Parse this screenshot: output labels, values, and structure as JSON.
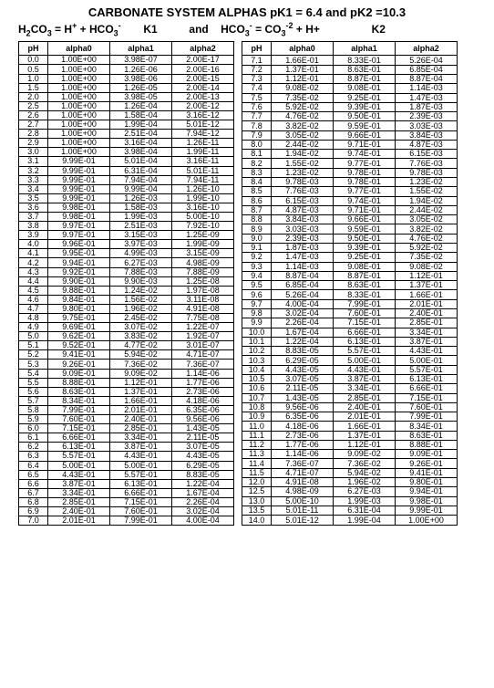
{
  "title": "CARBONATE SYSTEM ALPHAS  pK1 = 6.4 and pK2 =10.3",
  "headers": {
    "ph": "pH",
    "a0": "alpha0",
    "a1": "alpha1",
    "a2": "alpha2"
  },
  "equation": {
    "lhs_prefix": "H",
    "lhs_sub1": "2",
    "lhs_mid": "CO",
    "lhs_sub2": "3",
    "eq": " = H",
    "h_sup": "+",
    "plus": " + HCO",
    "hco_sub": "3",
    "hco_sup": "-",
    "k1": "K1",
    "and": "and",
    "rhs_pre": "HCO",
    "rhs_sub": "3",
    "rhs_sup": "-",
    "eq2": " = CO",
    "co_sub": "3",
    "co_sup": "-2",
    "plus_h": " + H+",
    "k2": "K2"
  },
  "tableA": {
    "rows": [
      {
        "ph": "0.0",
        "a0": "1.00E+00",
        "a1": "3.98E-07",
        "a2": "2.00E-17"
      },
      {
        "ph": "0.5",
        "a0": "1.00E+00",
        "a1": "1.26E-06",
        "a2": "2.00E-16"
      },
      {
        "ph": "1.0",
        "a0": "1.00E+00",
        "a1": "3.98E-06",
        "a2": "2.00E-15"
      },
      {
        "ph": "1.5",
        "a0": "1.00E+00",
        "a1": "1.26E-05",
        "a2": "2.00E-14"
      },
      {
        "ph": "2.0",
        "a0": "1.00E+00",
        "a1": "3.98E-05",
        "a2": "2.00E-13"
      },
      {
        "ph": "2.5",
        "a0": "1.00E+00",
        "a1": "1.26E-04",
        "a2": "2.00E-12"
      },
      {
        "ph": "2.6",
        "a0": "1.00E+00",
        "a1": "1.58E-04",
        "a2": "3.16E-12"
      },
      {
        "ph": "2.7",
        "a0": "1.00E+00",
        "a1": "1.99E-04",
        "a2": "5.01E-12"
      },
      {
        "ph": "2.8",
        "a0": "1.00E+00",
        "a1": "2.51E-04",
        "a2": "7.94E-12"
      },
      {
        "ph": "2.9",
        "a0": "1.00E+00",
        "a1": "3.16E-04",
        "a2": "1.26E-11"
      },
      {
        "ph": "3.0",
        "a0": "1.00E+00",
        "a1": "3.98E-04",
        "a2": "1.99E-11"
      },
      {
        "ph": "3.1",
        "a0": "9.99E-01",
        "a1": "5.01E-04",
        "a2": "3.16E-11"
      },
      {
        "ph": "3.2",
        "a0": "9.99E-01",
        "a1": "6.31E-04",
        "a2": "5.01E-11"
      },
      {
        "ph": "3.3",
        "a0": "9.99E-01",
        "a1": "7.94E-04",
        "a2": "7.94E-11"
      },
      {
        "ph": "3.4",
        "a0": "9.99E-01",
        "a1": "9.99E-04",
        "a2": "1.26E-10"
      },
      {
        "ph": "3.5",
        "a0": "9.99E-01",
        "a1": "1.26E-03",
        "a2": "1.99E-10"
      },
      {
        "ph": "3.6",
        "a0": "9.98E-01",
        "a1": "1.58E-03",
        "a2": "3.16E-10"
      },
      {
        "ph": "3.7",
        "a0": "9.98E-01",
        "a1": "1.99E-03",
        "a2": "5.00E-10"
      },
      {
        "ph": "3.8",
        "a0": "9.97E-01",
        "a1": "2.51E-03",
        "a2": "7.92E-10"
      },
      {
        "ph": "3.9",
        "a0": "9.97E-01",
        "a1": "3.15E-03",
        "a2": "1.25E-09"
      },
      {
        "ph": "4.0",
        "a0": "9.96E-01",
        "a1": "3.97E-03",
        "a2": "1.99E-09"
      },
      {
        "ph": "4.1",
        "a0": "9.95E-01",
        "a1": "4.99E-03",
        "a2": "3.15E-09"
      },
      {
        "ph": "4.2",
        "a0": "9.94E-01",
        "a1": "6.27E-03",
        "a2": "4.98E-09"
      },
      {
        "ph": "4.3",
        "a0": "9.92E-01",
        "a1": "7.88E-03",
        "a2": "7.88E-09"
      },
      {
        "ph": "4.4",
        "a0": "9.90E-01",
        "a1": "9.90E-03",
        "a2": "1.25E-08"
      },
      {
        "ph": "4.5",
        "a0": "9.88E-01",
        "a1": "1.24E-02",
        "a2": "1.97E-08"
      },
      {
        "ph": "4.6",
        "a0": "9.84E-01",
        "a1": "1.56E-02",
        "a2": "3.11E-08"
      },
      {
        "ph": "4.7",
        "a0": "9.80E-01",
        "a1": "1.96E-02",
        "a2": "4.91E-08"
      },
      {
        "ph": "4.8",
        "a0": "9.75E-01",
        "a1": "2.45E-02",
        "a2": "7.75E-08"
      },
      {
        "ph": "4.9",
        "a0": "9.69E-01",
        "a1": "3.07E-02",
        "a2": "1.22E-07"
      },
      {
        "ph": "5.0",
        "a0": "9.62E-01",
        "a1": "3.83E-02",
        "a2": "1.92E-07"
      },
      {
        "ph": "5.1",
        "a0": "9.52E-01",
        "a1": "4.77E-02",
        "a2": "3.01E-07"
      },
      {
        "ph": "5.2",
        "a0": "9.41E-01",
        "a1": "5.94E-02",
        "a2": "4.71E-07"
      },
      {
        "ph": "5.3",
        "a0": "9.26E-01",
        "a1": "7.36E-02",
        "a2": "7.36E-07"
      },
      {
        "ph": "5.4",
        "a0": "9.09E-01",
        "a1": "9.09E-02",
        "a2": "1.14E-06"
      },
      {
        "ph": "5.5",
        "a0": "8.88E-01",
        "a1": "1.12E-01",
        "a2": "1.77E-06"
      },
      {
        "ph": "5.6",
        "a0": "8.63E-01",
        "a1": "1.37E-01",
        "a2": "2.73E-06"
      },
      {
        "ph": "5.7",
        "a0": "8.34E-01",
        "a1": "1.66E-01",
        "a2": "4.18E-06"
      },
      {
        "ph": "5.8",
        "a0": "7.99E-01",
        "a1": "2.01E-01",
        "a2": "6.35E-06"
      },
      {
        "ph": "5.9",
        "a0": "7.60E-01",
        "a1": "2.40E-01",
        "a2": "9.56E-06"
      },
      {
        "ph": "6.0",
        "a0": "7.15E-01",
        "a1": "2.85E-01",
        "a2": "1.43E-05"
      },
      {
        "ph": "6.1",
        "a0": "6.66E-01",
        "a1": "3.34E-01",
        "a2": "2.11E-05"
      },
      {
        "ph": "6.2",
        "a0": "6.13E-01",
        "a1": "3.87E-01",
        "a2": "3.07E-05"
      },
      {
        "ph": "6.3",
        "a0": "5.57E-01",
        "a1": "4.43E-01",
        "a2": "4.43E-05"
      },
      {
        "ph": "6.4",
        "a0": "5.00E-01",
        "a1": "5.00E-01",
        "a2": "6.29E-05"
      },
      {
        "ph": "6.5",
        "a0": "4.43E-01",
        "a1": "5.57E-01",
        "a2": "8.83E-05"
      },
      {
        "ph": "6.6",
        "a0": "3.87E-01",
        "a1": "6.13E-01",
        "a2": "1.22E-04"
      },
      {
        "ph": "6.7",
        "a0": "3.34E-01",
        "a1": "6.66E-01",
        "a2": "1.67E-04"
      },
      {
        "ph": "6.8",
        "a0": "2.85E-01",
        "a1": "7.15E-01",
        "a2": "2.26E-04"
      },
      {
        "ph": "6.9",
        "a0": "2.40E-01",
        "a1": "7.60E-01",
        "a2": "3.02E-04"
      },
      {
        "ph": "7.0",
        "a0": "2.01E-01",
        "a1": "7.99E-01",
        "a2": "4.00E-04"
      }
    ]
  },
  "tableB": {
    "rows": [
      {
        "ph": "7.1",
        "a0": "1.66E-01",
        "a1": "8.33E-01",
        "a2": "5.26E-04"
      },
      {
        "ph": "7.2",
        "a0": "1.37E-01",
        "a1": "8.63E-01",
        "a2": "6.85E-04"
      },
      {
        "ph": "7.3",
        "a0": "1.12E-01",
        "a1": "8.87E-01",
        "a2": "8.87E-04"
      },
      {
        "ph": "7.4",
        "a0": "9.08E-02",
        "a1": "9.08E-01",
        "a2": "1.14E-03"
      },
      {
        "ph": "7.5",
        "a0": "7.35E-02",
        "a1": "9.25E-01",
        "a2": "1.47E-03"
      },
      {
        "ph": "7.6",
        "a0": "5.92E-02",
        "a1": "9.39E-01",
        "a2": "1.87E-03"
      },
      {
        "ph": "7.7",
        "a0": "4.76E-02",
        "a1": "9.50E-01",
        "a2": "2.39E-03"
      },
      {
        "ph": "7.8",
        "a0": "3.82E-02",
        "a1": "9.59E-01",
        "a2": "3.03E-03"
      },
      {
        "ph": "7.9",
        "a0": "3.05E-02",
        "a1": "9.66E-01",
        "a2": "3.84E-03"
      },
      {
        "ph": "8.0",
        "a0": "2.44E-02",
        "a1": "9.71E-01",
        "a2": "4.87E-03"
      },
      {
        "ph": "8.1",
        "a0": "1.94E-02",
        "a1": "9.74E-01",
        "a2": "6.15E-03"
      },
      {
        "ph": "8.2",
        "a0": "1.55E-02",
        "a1": "9.77E-01",
        "a2": "7.76E-03"
      },
      {
        "ph": "8.3",
        "a0": "1.23E-02",
        "a1": "9.78E-01",
        "a2": "9.78E-03"
      },
      {
        "ph": "8.4",
        "a0": "9.78E-03",
        "a1": "9.78E-01",
        "a2": "1.23E-02"
      },
      {
        "ph": "8.5",
        "a0": "7.76E-03",
        "a1": "9.77E-01",
        "a2": "1.55E-02"
      },
      {
        "ph": "8.6",
        "a0": "6.15E-03",
        "a1": "9.74E-01",
        "a2": "1.94E-02"
      },
      {
        "ph": "8.7",
        "a0": "4.87E-03",
        "a1": "9.71E-01",
        "a2": "2.44E-02"
      },
      {
        "ph": "8.8",
        "a0": "3.84E-03",
        "a1": "9.66E-01",
        "a2": "3.05E-02"
      },
      {
        "ph": "8.9",
        "a0": "3.03E-03",
        "a1": "9.59E-01",
        "a2": "3.82E-02"
      },
      {
        "ph": "9.0",
        "a0": "2.39E-03",
        "a1": "9.50E-01",
        "a2": "4.76E-02"
      },
      {
        "ph": "9.1",
        "a0": "1.87E-03",
        "a1": "9.39E-01",
        "a2": "5.92E-02"
      },
      {
        "ph": "9.2",
        "a0": "1.47E-03",
        "a1": "9.25E-01",
        "a2": "7.35E-02"
      },
      {
        "ph": "9.3",
        "a0": "1.14E-03",
        "a1": "9.08E-01",
        "a2": "9.08E-02"
      },
      {
        "ph": "9.4",
        "a0": "8.87E-04",
        "a1": "8.87E-01",
        "a2": "1.12E-01"
      },
      {
        "ph": "9.5",
        "a0": "6.85E-04",
        "a1": "8.63E-01",
        "a2": "1.37E-01"
      },
      {
        "ph": "9.6",
        "a0": "5.26E-04",
        "a1": "8.33E-01",
        "a2": "1.66E-01"
      },
      {
        "ph": "9.7",
        "a0": "4.00E-04",
        "a1": "7.99E-01",
        "a2": "2.01E-01"
      },
      {
        "ph": "9.8",
        "a0": "3.02E-04",
        "a1": "7.60E-01",
        "a2": "2.40E-01"
      },
      {
        "ph": "9.9",
        "a0": "2.26E-04",
        "a1": "7.15E-01",
        "a2": "2.85E-01"
      },
      {
        "ph": "10.0",
        "a0": "1.67E-04",
        "a1": "6.66E-01",
        "a2": "3.34E-01"
      },
      {
        "ph": "10.1",
        "a0": "1.22E-04",
        "a1": "6.13E-01",
        "a2": "3.87E-01"
      },
      {
        "ph": "10.2",
        "a0": "8.83E-05",
        "a1": "5.57E-01",
        "a2": "4.43E-01"
      },
      {
        "ph": "10.3",
        "a0": "6.29E-05",
        "a1": "5.00E-01",
        "a2": "5.00E-01"
      },
      {
        "ph": "10.4",
        "a0": "4.43E-05",
        "a1": "4.43E-01",
        "a2": "5.57E-01"
      },
      {
        "ph": "10.5",
        "a0": "3.07E-05",
        "a1": "3.87E-01",
        "a2": "6.13E-01"
      },
      {
        "ph": "10.6",
        "a0": "2.11E-05",
        "a1": "3.34E-01",
        "a2": "6.66E-01"
      },
      {
        "ph": "10.7",
        "a0": "1.43E-05",
        "a1": "2.85E-01",
        "a2": "7.15E-01"
      },
      {
        "ph": "10.8",
        "a0": "9.56E-06",
        "a1": "2.40E-01",
        "a2": "7.60E-01"
      },
      {
        "ph": "10.9",
        "a0": "6.35E-06",
        "a1": "2.01E-01",
        "a2": "7.99E-01"
      },
      {
        "ph": "11.0",
        "a0": "4.18E-06",
        "a1": "1.66E-01",
        "a2": "8.34E-01"
      },
      {
        "ph": "11.1",
        "a0": "2.73E-06",
        "a1": "1.37E-01",
        "a2": "8.63E-01"
      },
      {
        "ph": "11.2",
        "a0": "1.77E-06",
        "a1": "1.12E-01",
        "a2": "8.88E-01"
      },
      {
        "ph": "11.3",
        "a0": "1.14E-06",
        "a1": "9.09E-02",
        "a2": "9.09E-01"
      },
      {
        "ph": "11.4",
        "a0": "7.36E-07",
        "a1": "7.36E-02",
        "a2": "9.26E-01"
      },
      {
        "ph": "11.5",
        "a0": "4.71E-07",
        "a1": "5.94E-02",
        "a2": "9.41E-01"
      },
      {
        "ph": "12.0",
        "a0": "4.91E-08",
        "a1": "1.96E-02",
        "a2": "9.80E-01"
      },
      {
        "ph": "12.5",
        "a0": "4.98E-09",
        "a1": "6.27E-03",
        "a2": "9.94E-01"
      },
      {
        "ph": "13.0",
        "a0": "5.00E-10",
        "a1": "1.99E-03",
        "a2": "9.98E-01"
      },
      {
        "ph": "13.5",
        "a0": "5.01E-11",
        "a1": "6.31E-04",
        "a2": "9.99E-01"
      },
      {
        "ph": "14.0",
        "a0": "5.01E-12",
        "a1": "1.99E-04",
        "a2": "1.00E+00"
      }
    ]
  }
}
